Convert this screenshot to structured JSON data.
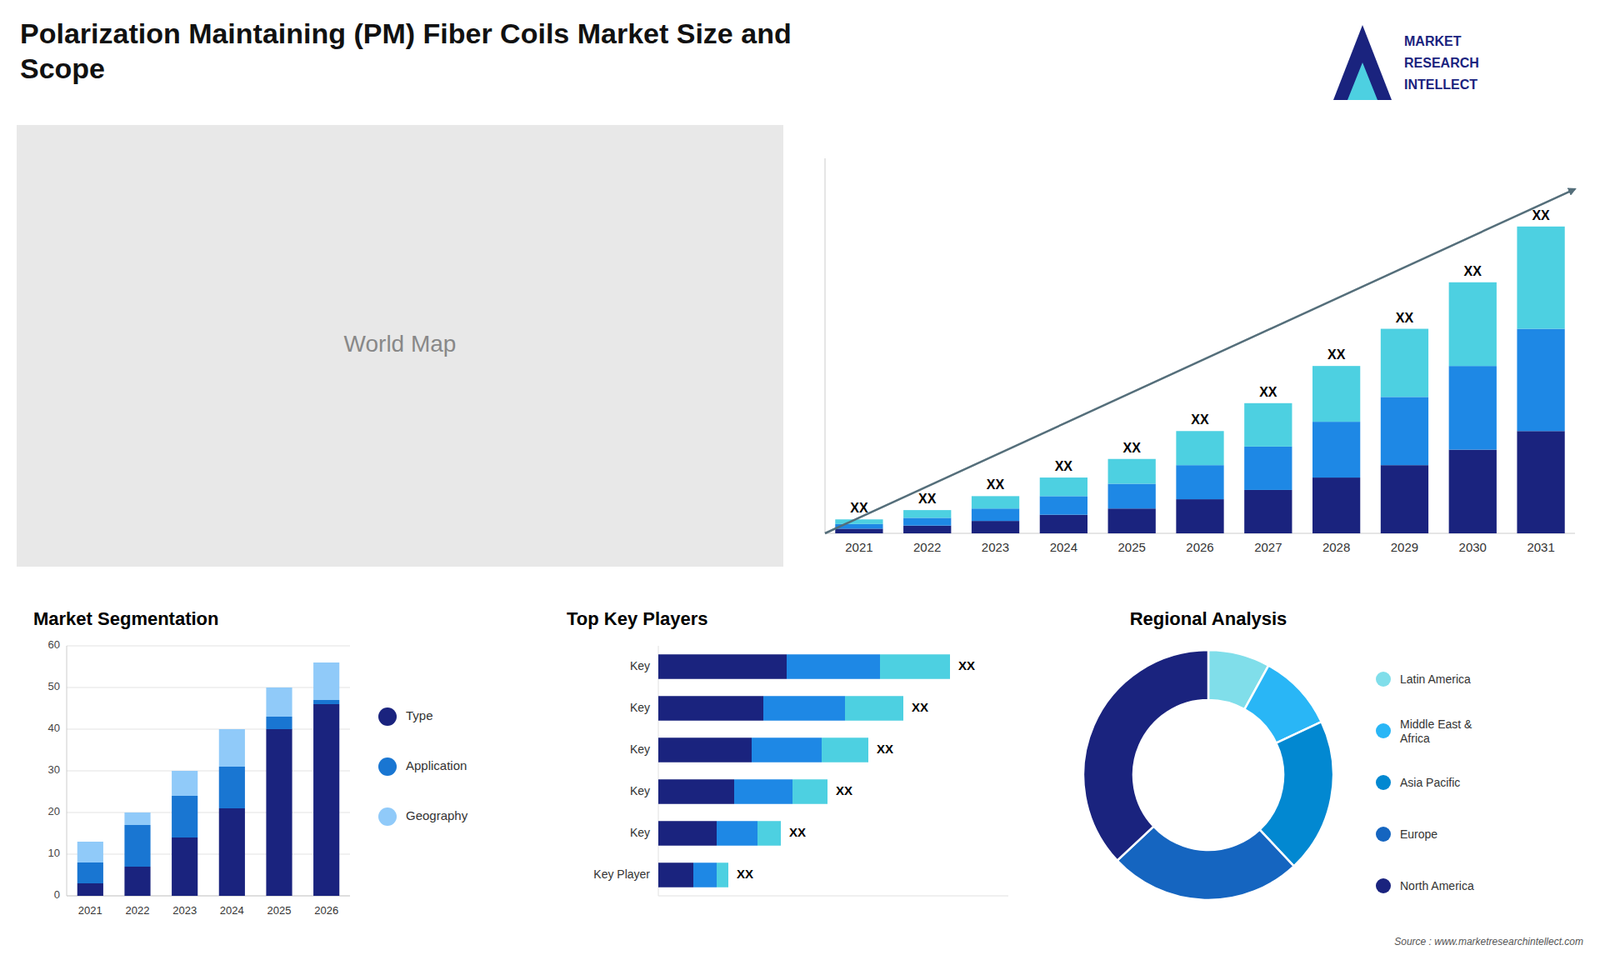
{
  "chart_data": [
    {
      "type": "bar",
      "title": "Polarization Maintaining (PM) Fiber Coils Market Size and\nScope",
      "categories": [
        "2021",
        "2022",
        "2023",
        "2024",
        "2025",
        "2026",
        "2027",
        "2028",
        "2029",
        "2030",
        "2031"
      ],
      "series": [
        {
          "color": "#1a237e",
          "values": [
            1.5,
            2.5,
            4,
            6,
            8,
            11,
            14,
            18,
            22,
            27,
            33
          ]
        },
        {
          "color": "#1e88e5",
          "values": [
            1.5,
            2.5,
            4,
            6,
            8,
            11,
            14,
            18,
            22,
            27,
            33
          ]
        },
        {
          "color": "#4dd0e1",
          "values": [
            1.5,
            2.5,
            4,
            6,
            8,
            11,
            14,
            18,
            22,
            27,
            33
          ]
        }
      ],
      "stacked": true,
      "ylim": [
        0,
        121
      ],
      "tick_labels": "x",
      "annotations": [
        "XX",
        "XX",
        "XX",
        "XX",
        "XX",
        "XX",
        "XX",
        "XX",
        "XX",
        "XX",
        "XX"
      ]
    },
    {
      "type": "bar",
      "title": "Market Segmentation",
      "categories": [
        "2021",
        "2022",
        "2023",
        "2024",
        "2025",
        "2026"
      ],
      "series": [
        {
          "name": "Type",
          "color": "#1a237e",
          "values": [
            3,
            7,
            14,
            21,
            40,
            46
          ]
        },
        {
          "name": "Application",
          "color": "#1976d2",
          "values": [
            5,
            10,
            10,
            10,
            3,
            1
          ]
        },
        {
          "name": "Geography",
          "color": "#90caf9",
          "values": [
            5,
            3,
            6,
            9,
            7,
            9
          ]
        }
      ],
      "stacked": true,
      "ylim": [
        0,
        60
      ],
      "yticks": [
        0,
        10,
        20,
        30,
        40,
        50,
        60
      ],
      "grid": true,
      "legend": "right"
    },
    {
      "type": "bar",
      "title": "Top Key Players",
      "orientation": "horizontal",
      "stacked": true,
      "categories": [
        "Key",
        "Key",
        "Key",
        "Key",
        "Key",
        "Key Player"
      ],
      "series": [
        {
          "color": "#1a237e",
          "values": [
            0.22,
            0.18,
            0.16,
            0.13,
            0.1,
            0.06
          ]
        },
        {
          "color": "#1e88e5",
          "values": [
            0.16,
            0.14,
            0.12,
            0.1,
            0.07,
            0.04
          ]
        },
        {
          "color": "#4dd0e1",
          "values": [
            0.12,
            0.1,
            0.08,
            0.06,
            0.04,
            0.02
          ]
        }
      ],
      "xlim": [
        0,
        0.6
      ],
      "tick_labels": "y",
      "annotations": [
        "XX",
        "XX",
        "XX",
        "XX",
        "XX",
        "XX"
      ]
    },
    {
      "type": "donut",
      "title": "Regional Analysis",
      "categories": [
        "Latin America",
        "Middle East &\nAfrica",
        "Asia Pacific",
        "Europe",
        "North America"
      ],
      "values": [
        8,
        10,
        20,
        25,
        37
      ],
      "colors": [
        "#80deea",
        "#29b6f6",
        "#0288d1",
        "#1565c0",
        "#1a237e"
      ],
      "legend": "right"
    }
  ],
  "annotations": [
    "MARKET",
    "RESEARCH",
    "INTELLECT",
    "World Map",
    "Source : www.marketresearchintellect.com"
  ]
}
